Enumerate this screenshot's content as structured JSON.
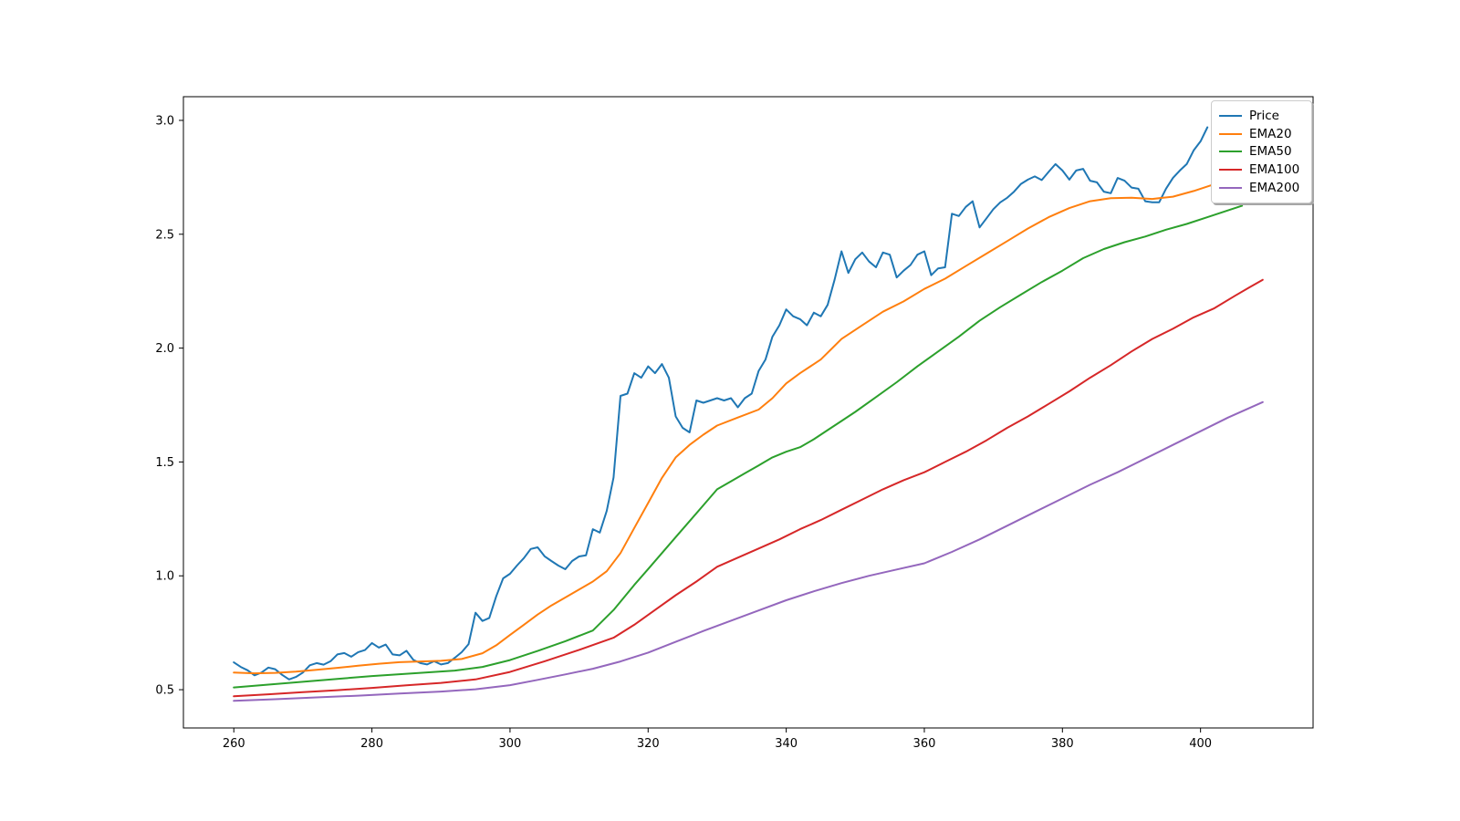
{
  "figure": {
    "background": "#ffffff"
  },
  "chart_data": {
    "type": "line",
    "title": "",
    "xlabel": "",
    "ylabel": "",
    "grid": false,
    "legend": {
      "position": "upper right",
      "items": [
        "Price",
        "EMA20",
        "EMA50",
        "EMA100",
        "EMA200"
      ]
    },
    "xlim": [
      252.7,
      416.3
    ],
    "ylim": [
      0.332,
      3.104
    ],
    "xticks": [
      {
        "label": "260",
        "value": 260
      },
      {
        "label": "280",
        "value": 280
      },
      {
        "label": "300",
        "value": 300
      },
      {
        "label": "320",
        "value": 320
      },
      {
        "label": "340",
        "value": 340
      },
      {
        "label": "360",
        "value": 360
      },
      {
        "label": "380",
        "value": 380
      },
      {
        "label": "400",
        "value": 400
      }
    ],
    "yticks": [
      {
        "label": "0.5",
        "value": 0.5
      },
      {
        "label": "1.0",
        "value": 1.0
      },
      {
        "label": "1.5",
        "value": 1.5
      },
      {
        "label": "2.0",
        "value": 2.0
      },
      {
        "label": "2.5",
        "value": 2.5
      },
      {
        "label": "3.0",
        "value": 3.0
      }
    ],
    "series": [
      {
        "name": "Price",
        "color": "#1f77b4",
        "x_start": 260,
        "x_step": 1,
        "values": [
          0.62,
          0.6,
          0.585,
          0.563,
          0.575,
          0.597,
          0.59,
          0.565,
          0.545,
          0.556,
          0.575,
          0.607,
          0.617,
          0.61,
          0.625,
          0.655,
          0.661,
          0.645,
          0.665,
          0.674,
          0.705,
          0.685,
          0.698,
          0.655,
          0.651,
          0.671,
          0.631,
          0.617,
          0.611,
          0.625,
          0.611,
          0.617,
          0.64,
          0.665,
          0.7,
          0.838,
          0.802,
          0.815,
          0.91,
          0.989,
          1.009,
          1.045,
          1.078,
          1.118,
          1.125,
          1.086,
          1.065,
          1.045,
          1.029,
          1.065,
          1.085,
          1.09,
          1.205,
          1.19,
          1.285,
          1.432,
          1.79,
          1.8,
          1.89,
          1.87,
          1.92,
          1.89,
          1.93,
          1.87,
          1.7,
          1.65,
          1.63,
          1.77,
          1.76,
          1.77,
          1.78,
          1.77,
          1.78,
          1.74,
          1.78,
          1.8,
          1.9,
          1.95,
          2.05,
          2.1,
          2.17,
          2.14,
          2.127,
          2.1,
          2.156,
          2.14,
          2.19,
          2.3,
          2.425,
          2.33,
          2.39,
          2.42,
          2.38,
          2.355,
          2.42,
          2.41,
          2.31,
          2.34,
          2.365,
          2.41,
          2.425,
          2.32,
          2.35,
          2.355,
          2.59,
          2.58,
          2.62,
          2.645,
          2.53,
          2.57,
          2.61,
          2.64,
          2.66,
          2.687,
          2.721,
          2.74,
          2.754,
          2.738,
          2.774,
          2.808,
          2.78,
          2.74,
          2.78,
          2.787,
          2.735,
          2.728,
          2.687,
          2.68,
          2.747,
          2.735,
          2.705,
          2.7,
          2.645,
          2.64,
          2.64,
          2.7,
          2.747,
          2.78,
          2.808,
          2.868,
          2.908,
          2.97
        ]
      },
      {
        "name": "EMA20",
        "color": "#ff7f0e",
        "points": [
          [
            260,
            0.575
          ],
          [
            263,
            0.572
          ],
          [
            266,
            0.574
          ],
          [
            269,
            0.579
          ],
          [
            272,
            0.587
          ],
          [
            275,
            0.596
          ],
          [
            278,
            0.605
          ],
          [
            281,
            0.614
          ],
          [
            284,
            0.621
          ],
          [
            287,
            0.624
          ],
          [
            290,
            0.627
          ],
          [
            293,
            0.635
          ],
          [
            296,
            0.66
          ],
          [
            298,
            0.695
          ],
          [
            300,
            0.74
          ],
          [
            302,
            0.785
          ],
          [
            304,
            0.83
          ],
          [
            306,
            0.87
          ],
          [
            308,
            0.905
          ],
          [
            310,
            0.94
          ],
          [
            312,
            0.975
          ],
          [
            314,
            1.02
          ],
          [
            316,
            1.1
          ],
          [
            318,
            1.21
          ],
          [
            320,
            1.32
          ],
          [
            322,
            1.43
          ],
          [
            324,
            1.52
          ],
          [
            326,
            1.575
          ],
          [
            328,
            1.62
          ],
          [
            330,
            1.66
          ],
          [
            333,
            1.695
          ],
          [
            336,
            1.73
          ],
          [
            338,
            1.78
          ],
          [
            340,
            1.845
          ],
          [
            342,
            1.89
          ],
          [
            345,
            1.95
          ],
          [
            348,
            2.04
          ],
          [
            351,
            2.1
          ],
          [
            354,
            2.16
          ],
          [
            357,
            2.205
          ],
          [
            360,
            2.26
          ],
          [
            363,
            2.305
          ],
          [
            366,
            2.36
          ],
          [
            369,
            2.415
          ],
          [
            372,
            2.47
          ],
          [
            375,
            2.525
          ],
          [
            378,
            2.575
          ],
          [
            381,
            2.615
          ],
          [
            384,
            2.645
          ],
          [
            387,
            2.658
          ],
          [
            390,
            2.66
          ],
          [
            393,
            2.655
          ],
          [
            396,
            2.665
          ],
          [
            399,
            2.69
          ],
          [
            402,
            2.72
          ],
          [
            405,
            2.745
          ]
        ]
      },
      {
        "name": "EMA50",
        "color": "#2ca02c",
        "points": [
          [
            260,
            0.51
          ],
          [
            264,
            0.52
          ],
          [
            268,
            0.53
          ],
          [
            272,
            0.54
          ],
          [
            276,
            0.55
          ],
          [
            280,
            0.56
          ],
          [
            284,
            0.568
          ],
          [
            288,
            0.576
          ],
          [
            292,
            0.584
          ],
          [
            296,
            0.6
          ],
          [
            300,
            0.63
          ],
          [
            304,
            0.67
          ],
          [
            308,
            0.713
          ],
          [
            312,
            0.76
          ],
          [
            315,
            0.85
          ],
          [
            318,
            0.96
          ],
          [
            320,
            1.03
          ],
          [
            322,
            1.1
          ],
          [
            324,
            1.17
          ],
          [
            326,
            1.24
          ],
          [
            328,
            1.31
          ],
          [
            330,
            1.38
          ],
          [
            332,
            1.415
          ],
          [
            334,
            1.45
          ],
          [
            336,
            1.485
          ],
          [
            338,
            1.52
          ],
          [
            340,
            1.545
          ],
          [
            342,
            1.565
          ],
          [
            344,
            1.6
          ],
          [
            346,
            1.64
          ],
          [
            348,
            1.68
          ],
          [
            350,
            1.72
          ],
          [
            353,
            1.785
          ],
          [
            356,
            1.85
          ],
          [
            359,
            1.92
          ],
          [
            362,
            1.985
          ],
          [
            365,
            2.05
          ],
          [
            368,
            2.12
          ],
          [
            371,
            2.18
          ],
          [
            374,
            2.235
          ],
          [
            377,
            2.29
          ],
          [
            380,
            2.34
          ],
          [
            383,
            2.395
          ],
          [
            386,
            2.435
          ],
          [
            389,
            2.465
          ],
          [
            392,
            2.49
          ],
          [
            395,
            2.52
          ],
          [
            398,
            2.545
          ],
          [
            401,
            2.575
          ],
          [
            404,
            2.605
          ],
          [
            406,
            2.625
          ]
        ]
      },
      {
        "name": "EMA100",
        "color": "#d62728",
        "points": [
          [
            260,
            0.471
          ],
          [
            265,
            0.48
          ],
          [
            270,
            0.489
          ],
          [
            275,
            0.498
          ],
          [
            280,
            0.508
          ],
          [
            285,
            0.519
          ],
          [
            290,
            0.53
          ],
          [
            295,
            0.545
          ],
          [
            300,
            0.578
          ],
          [
            305,
            0.625
          ],
          [
            310,
            0.675
          ],
          [
            315,
            0.728
          ],
          [
            318,
            0.785
          ],
          [
            321,
            0.85
          ],
          [
            324,
            0.915
          ],
          [
            327,
            0.975
          ],
          [
            330,
            1.04
          ],
          [
            333,
            1.08
          ],
          [
            336,
            1.12
          ],
          [
            339,
            1.16
          ],
          [
            342,
            1.205
          ],
          [
            345,
            1.245
          ],
          [
            348,
            1.29
          ],
          [
            351,
            1.335
          ],
          [
            354,
            1.38
          ],
          [
            357,
            1.42
          ],
          [
            360,
            1.455
          ],
          [
            363,
            1.5
          ],
          [
            366,
            1.545
          ],
          [
            369,
            1.595
          ],
          [
            372,
            1.65
          ],
          [
            375,
            1.7
          ],
          [
            378,
            1.755
          ],
          [
            381,
            1.81
          ],
          [
            384,
            1.87
          ],
          [
            387,
            1.925
          ],
          [
            390,
            1.985
          ],
          [
            393,
            2.04
          ],
          [
            396,
            2.085
          ],
          [
            399,
            2.135
          ],
          [
            402,
            2.175
          ],
          [
            405,
            2.23
          ],
          [
            407,
            2.265
          ],
          [
            409,
            2.3
          ]
        ]
      },
      {
        "name": "EMA200",
        "color": "#9467bd",
        "points": [
          [
            260,
            0.451
          ],
          [
            266,
            0.458
          ],
          [
            272,
            0.466
          ],
          [
            278,
            0.474
          ],
          [
            284,
            0.483
          ],
          [
            290,
            0.492
          ],
          [
            295,
            0.502
          ],
          [
            300,
            0.52
          ],
          [
            304,
            0.543
          ],
          [
            308,
            0.567
          ],
          [
            312,
            0.592
          ],
          [
            316,
            0.624
          ],
          [
            320,
            0.663
          ],
          [
            324,
            0.71
          ],
          [
            328,
            0.758
          ],
          [
            332,
            0.803
          ],
          [
            336,
            0.848
          ],
          [
            340,
            0.893
          ],
          [
            344,
            0.932
          ],
          [
            348,
            0.968
          ],
          [
            352,
            1.0
          ],
          [
            356,
            1.028
          ],
          [
            360,
            1.055
          ],
          [
            364,
            1.105
          ],
          [
            368,
            1.16
          ],
          [
            372,
            1.22
          ],
          [
            376,
            1.28
          ],
          [
            380,
            1.34
          ],
          [
            384,
            1.4
          ],
          [
            388,
            1.455
          ],
          [
            392,
            1.515
          ],
          [
            396,
            1.575
          ],
          [
            400,
            1.635
          ],
          [
            404,
            1.695
          ],
          [
            409,
            1.763
          ]
        ]
      }
    ]
  }
}
